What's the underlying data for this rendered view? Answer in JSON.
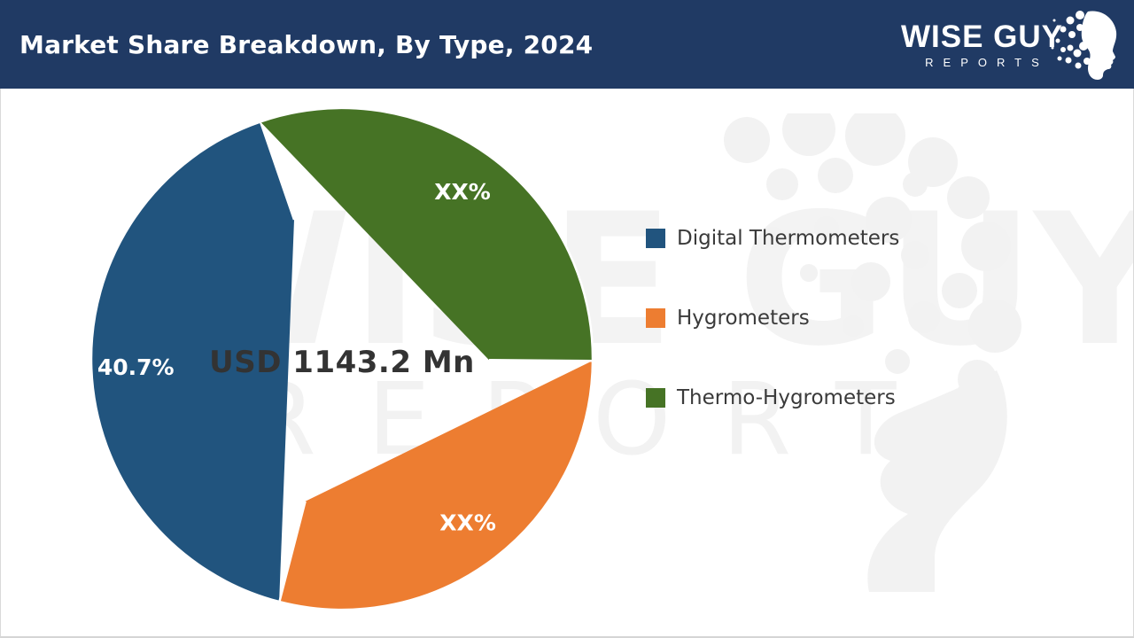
{
  "header": {
    "title": "Market Share Breakdown, By Type, 2024",
    "logo": {
      "line1": "WISE GUY",
      "line2": "REPORTS"
    }
  },
  "watermark": {
    "line1": "WISE GUY",
    "line2": "REPORTS"
  },
  "chart_data": {
    "type": "pie",
    "donut": true,
    "title": "Market Share Breakdown, By Type, 2024",
    "center_value": "USD 1143.2 Mn",
    "legend_position": "right",
    "segments": [
      {
        "name": "Digital Thermometers",
        "color": "#21547E",
        "value": 40.7,
        "display_label": "40.7%",
        "start_angle": 194.5
      },
      {
        "name": "Hygrometers",
        "color": "#ED7D31",
        "value": 28.9,
        "display_label": "XX%",
        "start_angle": 90.4
      },
      {
        "name": "Thermo-Hygrometers",
        "color": "#467325",
        "value": 30.4,
        "display_label": "XX%",
        "start_angle": 341.0
      }
    ]
  },
  "colors": {
    "header_bg": "#203A64",
    "text_dark": "#3A3A3A",
    "center_text": "#333333",
    "watermark": "#F2F2F2",
    "border": "#D9D9D9"
  }
}
